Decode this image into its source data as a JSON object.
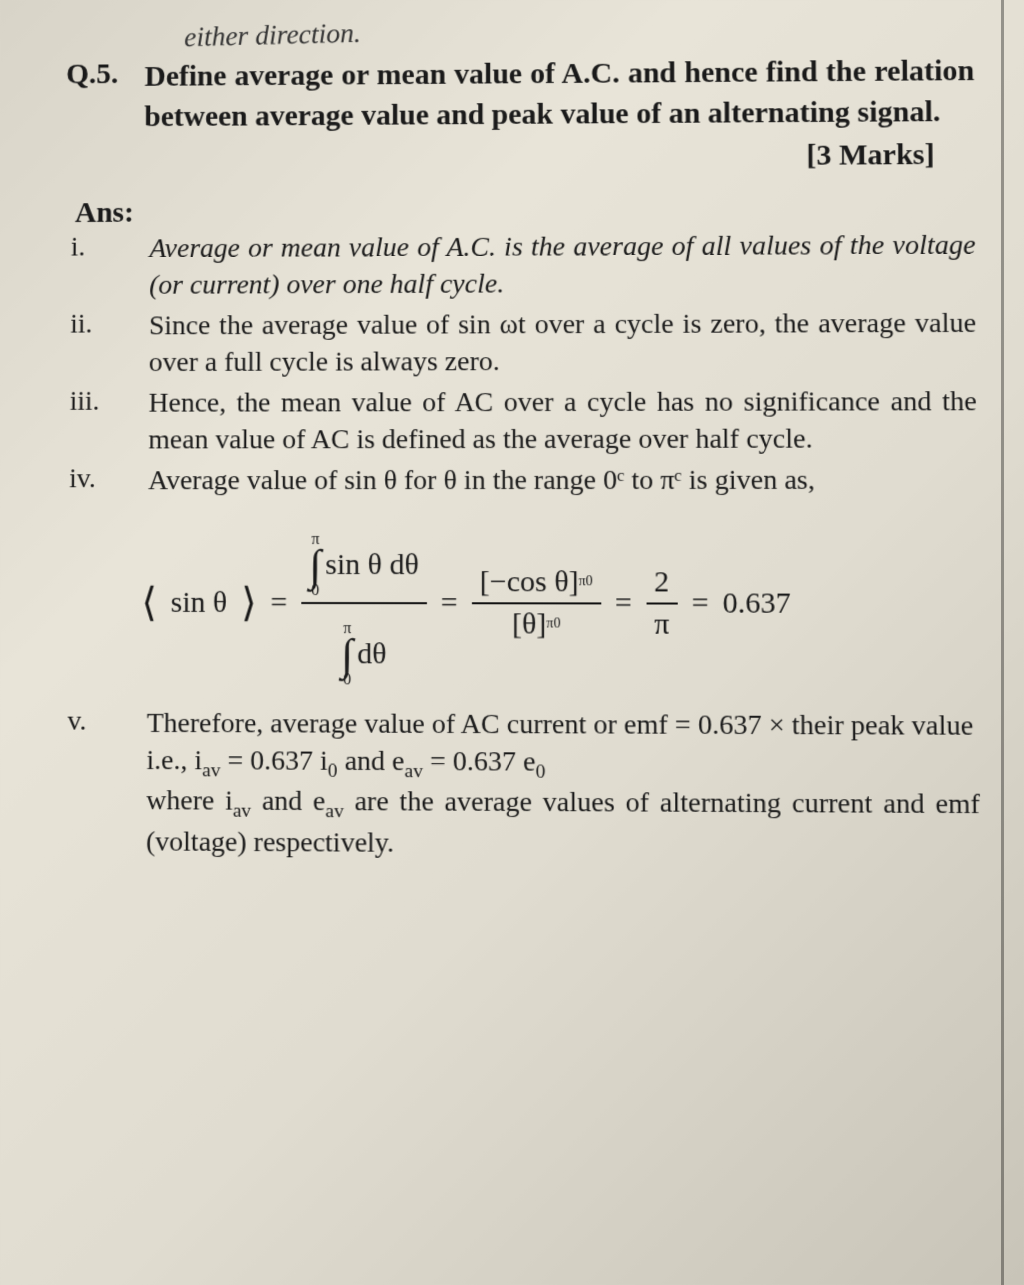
{
  "top_fragment": "either direction.",
  "question": {
    "number": "Q.5.",
    "text": "Define average or mean value of A.C. and hence find the relation between average value and peak value of an alternating signal.",
    "marks": "[3 Marks]"
  },
  "ans_label": "Ans:",
  "items": [
    {
      "num": "i.",
      "text": "Average or mean value of A.C. is the average of all values of the voltage (or current) over one half cycle.",
      "italic": true
    },
    {
      "num": "ii.",
      "text": "Since the average value of sin ωt over a cycle is zero, the average value over a full cycle is always zero.",
      "italic": false
    },
    {
      "num": "iii.",
      "text": "Hence, the mean value of AC over a cycle has no significance and the mean value of AC is defined as the average over half cycle.",
      "italic": false
    },
    {
      "num": "iv.",
      "text": "Average value of sin θ for θ in the range 0ᶜ to πᶜ is given as,",
      "italic": false
    }
  ],
  "formula": {
    "lhs": "sin θ",
    "top_int_upper": "π",
    "top_int_lower": "0",
    "top_integrand": "sin θ dθ",
    "bot_int_upper": "π",
    "bot_int_lower": "0",
    "bot_integrand": "dθ",
    "mid_num": "[−cos θ]",
    "mid_num_up": "π",
    "mid_num_lo": "0",
    "mid_den": "[θ]",
    "mid_den_up": "π",
    "mid_den_lo": "0",
    "frac_num": "2",
    "frac_den": "π",
    "result": "0.637"
  },
  "item_v": {
    "num": "v.",
    "line1": "Therefore, average value of AC current or emf = 0.637 × their peak value",
    "line2_a": "i.e., i",
    "line2_b": " = 0.637 i",
    "line2_c": " and e",
    "line2_d": " = 0.637 e",
    "sub_av": "av",
    "sub_0": "0",
    "line3_a": "where i",
    "line3_b": " and e",
    "line3_c": " are the average values of alternating current and emf (voltage) respectively."
  }
}
